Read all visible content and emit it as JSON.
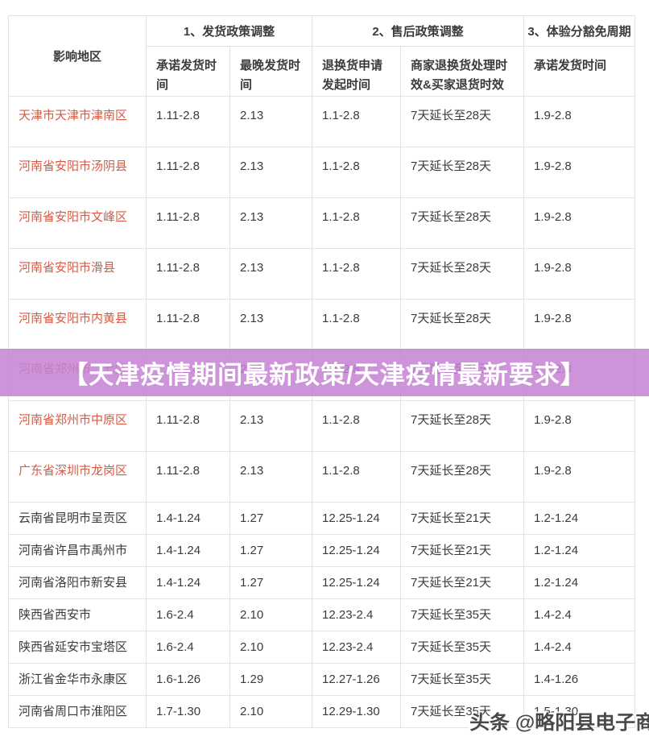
{
  "banner": {
    "text": "【天津疫情期间最新政策/天津疫情最新要求】",
    "bg_color": "#c681d3",
    "text_color": "#ffffff"
  },
  "watermark": {
    "text": "头条 @略阳县电子商务"
  },
  "table": {
    "corner_header": "影响地区",
    "groups": [
      {
        "label": "1、发货政策调整",
        "cols": [
          "承诺发货时间",
          "最晚发货时间"
        ]
      },
      {
        "label": "2、售后政策调整",
        "cols": [
          "退换货申请发起时间",
          "商家退换货处理时效&买家退货时效"
        ]
      },
      {
        "label": "3、体验分豁免周期",
        "cols": [
          "承诺发货时间"
        ]
      }
    ],
    "highlight_color": "#d65b45",
    "rows": [
      {
        "region": "天津市天津市津南区",
        "highlight": true,
        "tall": true,
        "values": [
          "1.11-2.8",
          "2.13",
          "1.1-2.8",
          "7天延长至28天",
          "1.9-2.8"
        ]
      },
      {
        "region": "河南省安阳市汤阴县",
        "highlight": true,
        "tall": true,
        "values": [
          "1.11-2.8",
          "2.13",
          "1.1-2.8",
          "7天延长至28天",
          "1.9-2.8"
        ]
      },
      {
        "region": "河南省安阳市文峰区",
        "highlight": true,
        "tall": true,
        "values": [
          "1.11-2.8",
          "2.13",
          "1.1-2.8",
          "7天延长至28天",
          "1.9-2.8"
        ]
      },
      {
        "region": "河南省安阳市滑县",
        "highlight": true,
        "tall": true,
        "values": [
          "1.11-2.8",
          "2.13",
          "1.1-2.8",
          "7天延长至28天",
          "1.9-2.8"
        ]
      },
      {
        "region": "河南省安阳市内黄县",
        "highlight": true,
        "tall": true,
        "values": [
          "1.11-2.8",
          "2.13",
          "1.1-2.8",
          "7天延长至28天",
          "1.9-2.8"
        ]
      },
      {
        "region": "河南省郑州市二七区",
        "highlight": true,
        "tall": true,
        "values": [
          "1.11-2.8",
          "2.13",
          "1.1-2.8",
          "7天延长至28天",
          "1.9-2.8"
        ]
      },
      {
        "region": "河南省郑州市中原区",
        "highlight": true,
        "tall": true,
        "values": [
          "1.11-2.8",
          "2.13",
          "1.1-2.8",
          "7天延长至28天",
          "1.9-2.8"
        ]
      },
      {
        "region": "广东省深圳市龙岗区",
        "highlight": true,
        "tall": true,
        "values": [
          "1.11-2.8",
          "2.13",
          "1.1-2.8",
          "7天延长至28天",
          "1.9-2.8"
        ]
      },
      {
        "region": "云南省昆明市呈贡区",
        "highlight": false,
        "tall": false,
        "values": [
          "1.4-1.24",
          "1.27",
          "12.25-1.24",
          "7天延长至21天",
          "1.2-1.24"
        ]
      },
      {
        "region": "河南省许昌市禹州市",
        "highlight": false,
        "tall": false,
        "values": [
          "1.4-1.24",
          "1.27",
          "12.25-1.24",
          "7天延长至21天",
          "1.2-1.24"
        ]
      },
      {
        "region": "河南省洛阳市新安县",
        "highlight": false,
        "tall": false,
        "values": [
          "1.4-1.24",
          "1.27",
          "12.25-1.24",
          "7天延长至21天",
          "1.2-1.24"
        ]
      },
      {
        "region": "陕西省西安市",
        "highlight": false,
        "tall": false,
        "values": [
          "1.6-2.4",
          "2.10",
          "12.23-2.4",
          "7天延长至35天",
          "1.4-2.4"
        ]
      },
      {
        "region": "陕西省延安市宝塔区",
        "highlight": false,
        "tall": false,
        "values": [
          "1.6-2.4",
          "2.10",
          "12.23-2.4",
          "7天延长至35天",
          "1.4-2.4"
        ]
      },
      {
        "region": "浙江省金华市永康区",
        "highlight": false,
        "tall": false,
        "values": [
          "1.6-1.26",
          "1.29",
          "12.27-1.26",
          "7天延长至35天",
          "1.4-1.26"
        ]
      },
      {
        "region": "河南省周口市淮阳区",
        "highlight": false,
        "tall": false,
        "values": [
          "1.7-1.30",
          "2.10",
          "12.29-1.30",
          "7天延长至35天",
          "1.5-1.30"
        ]
      }
    ]
  }
}
